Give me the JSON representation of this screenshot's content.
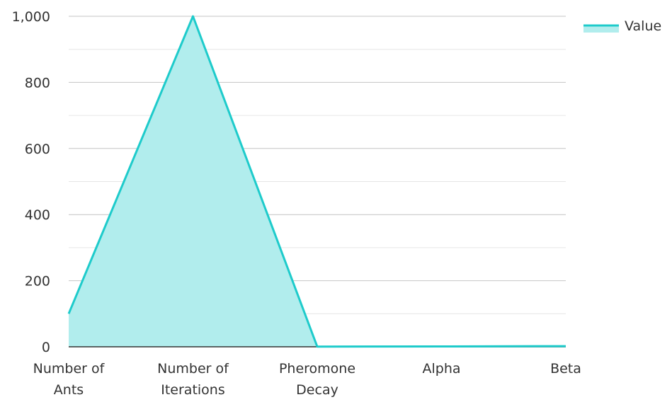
{
  "chart_data": {
    "type": "area",
    "title": "",
    "xlabel": "",
    "ylabel": "",
    "categories": [
      [
        "Number of",
        "Ants"
      ],
      [
        "Number of",
        "Iterations"
      ],
      [
        "Pheromone",
        "Decay"
      ],
      [
        "Alpha"
      ],
      [
        "Beta"
      ]
    ],
    "series": [
      {
        "name": "Value",
        "values": [
          100,
          1000,
          0.5,
          1,
          2
        ],
        "color": "#1ecbcb",
        "fill": "#b1eded"
      }
    ],
    "ylim": [
      0,
      1000
    ],
    "yticks": [
      0,
      200,
      400,
      600,
      800,
      1000
    ],
    "ytick_labels": [
      "0",
      "200",
      "400",
      "600",
      "800",
      "1,000"
    ],
    "grid": true,
    "legend": {
      "position": "top-right"
    }
  }
}
